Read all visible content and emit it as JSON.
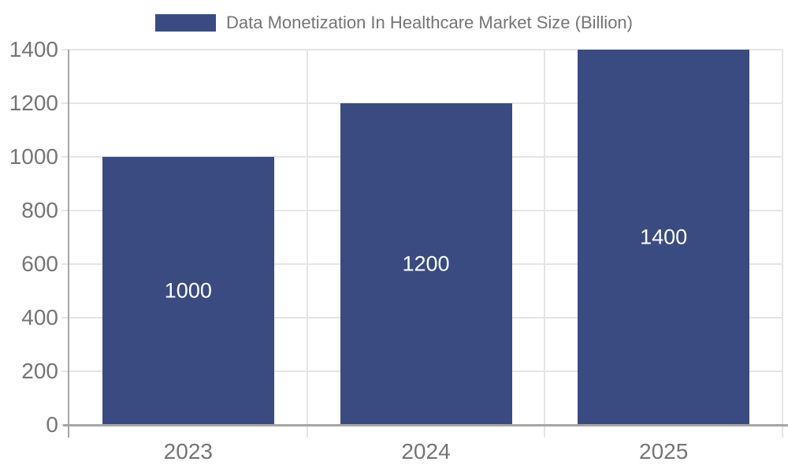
{
  "legend": {
    "label": "Data Monetization In Healthcare Market Size (Billion)"
  },
  "chart_data": {
    "type": "bar",
    "title": "Data Monetization In Healthcare Market Size (Billion)",
    "series_name": "Data Monetization In Healthcare Market Size (Billion)",
    "categories": [
      "2023",
      "2024",
      "2025"
    ],
    "values": [
      1000,
      1200,
      1400
    ],
    "data_labels": [
      "1000",
      "1200",
      "1400"
    ],
    "yticks": [
      0,
      200,
      400,
      600,
      800,
      1000,
      1200,
      1400
    ],
    "ylim": [
      0,
      1400
    ],
    "xlabel": "",
    "ylabel": "",
    "grid": true,
    "legend_position": "top-center",
    "colors": {
      "bar": "#3A4B82",
      "data_label": "#FFFFFF",
      "axis_text": "#757575",
      "legend_text": "#757575",
      "gridline": "#E5E5E5",
      "axis_line": "#A6A6A6",
      "background": "#FFFFFF"
    }
  }
}
